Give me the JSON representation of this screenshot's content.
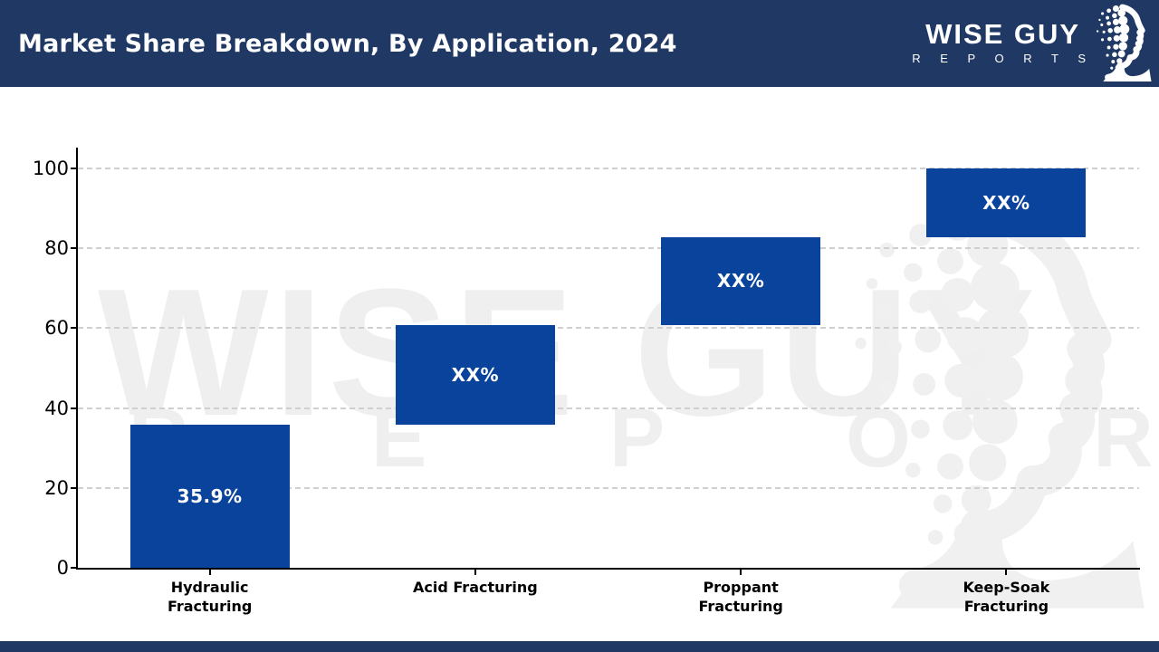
{
  "header": {
    "title": "Market Share Breakdown, By Application, 2024",
    "bg_color": "#203864",
    "brand": {
      "line1": "WISE GUY",
      "line2": "R E P O R T S"
    }
  },
  "watermark": {
    "line1": "WISE GUY",
    "line2": "R E P O R T S",
    "color": "#efefef"
  },
  "footer": {
    "bg_color": "#203864"
  },
  "chart_data": {
    "type": "bar",
    "subtype": "waterfall",
    "title": "Market Share Breakdown, By Application, 2024",
    "categories": [
      "Hydraulic Fracturing",
      "Acid Fracturing",
      "Proppant Fracturing",
      "Keep-Soak Fracturing"
    ],
    "category_label_lines": [
      [
        "Hydraulic",
        "Fracturing"
      ],
      [
        "Acid Fracturing"
      ],
      [
        "Proppant",
        "Fracturing"
      ],
      [
        "Keep-Soak",
        "Fracturing"
      ]
    ],
    "segments": [
      {
        "category": "Hydraulic Fracturing",
        "start": 0,
        "end": 35.9,
        "label": "35.9%"
      },
      {
        "category": "Acid Fracturing",
        "start": 35.9,
        "end": 60.8,
        "label": "XX%"
      },
      {
        "category": "Proppant Fracturing",
        "start": 60.8,
        "end": 82.8,
        "label": "XX%"
      },
      {
        "category": "Keep-Soak Fracturing",
        "start": 82.8,
        "end": 100,
        "label": "XX%"
      }
    ],
    "xlabel": "",
    "ylabel": "",
    "yticks": [
      0,
      20,
      40,
      60,
      80,
      100
    ],
    "ylim": [
      0,
      105
    ],
    "grid": "horizontal dashed",
    "legend": "none",
    "bar_color": "#09439b",
    "bar_label_color": "#ffffff",
    "axis_color": "#000000",
    "gridline_color": "#cfcfcf"
  }
}
